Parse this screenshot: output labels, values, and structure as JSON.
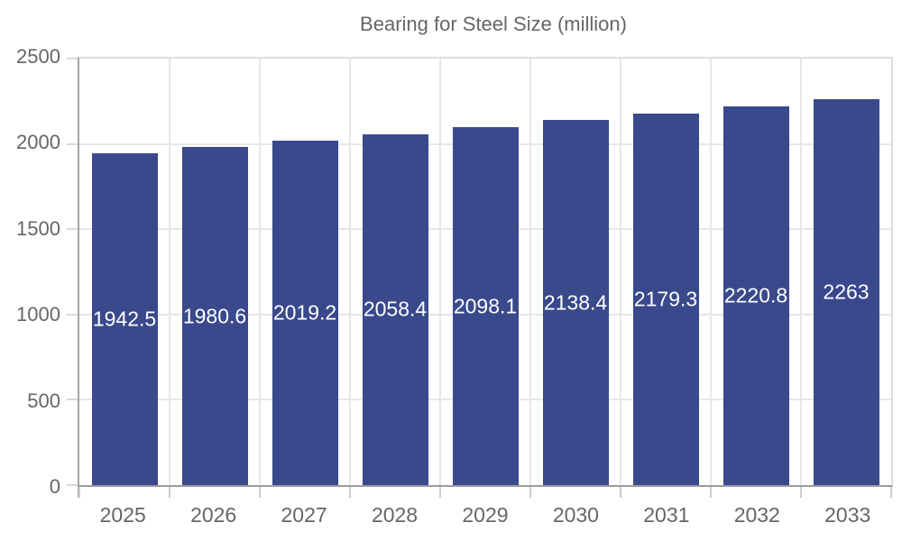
{
  "chart_data": {
    "type": "bar",
    "title": "Bearing for Steel Size (million)",
    "legend": {
      "label": "Bearing for Steel Size (million)",
      "position": "top"
    },
    "categories": [
      "2025",
      "2026",
      "2027",
      "2028",
      "2029",
      "2030",
      "2031",
      "2032",
      "2033"
    ],
    "series": [
      {
        "name": "Bearing for Steel Size (million)",
        "values": [
          1942.5,
          1980.6,
          2019.2,
          2058.4,
          2098.1,
          2138.4,
          2179.3,
          2220.8,
          2263
        ]
      }
    ],
    "value_labels": [
      "1942.5",
      "1980.6",
      "2019.2",
      "2058.4",
      "2098.1",
      "2138.4",
      "2179.3",
      "2220.8",
      "2263"
    ],
    "xlabel": "",
    "ylabel": "",
    "ylim": [
      0,
      2500
    ],
    "yticks": [
      0,
      500,
      1000,
      1500,
      2000,
      2500
    ],
    "grid": true,
    "colors": {
      "bar": "#39498C",
      "axis_text": "#666666",
      "value_label_text": "#ffffff",
      "gridline": "#e7e7e7",
      "axis_line": "#a6a6a6",
      "plot_border": "#dddddd"
    }
  }
}
